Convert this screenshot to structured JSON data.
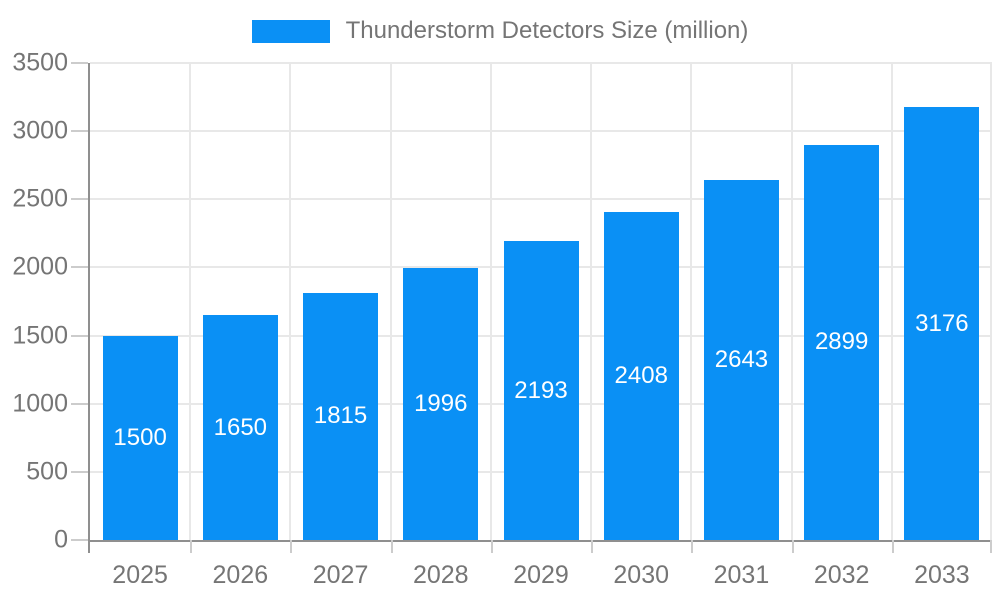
{
  "legend": {
    "label": "Thunderstorm Detectors Size (million)",
    "swatch_color": "#0a90f5"
  },
  "chart_data": {
    "type": "bar",
    "title": "Thunderstorm Detectors Size (million)",
    "categories": [
      "2025",
      "2026",
      "2027",
      "2028",
      "2029",
      "2030",
      "2031",
      "2032",
      "2033"
    ],
    "series": [
      {
        "name": "Thunderstorm Detectors Size (million)",
        "values": [
          1500,
          1650,
          1815,
          1996,
          2193,
          2408,
          2643,
          2899,
          3176
        ]
      }
    ],
    "xlabel": "",
    "ylabel": "",
    "ylim": [
      0,
      3500
    ],
    "yticks": [
      0,
      500,
      1000,
      1500,
      2000,
      2500,
      3000,
      3500
    ],
    "grid": true,
    "legend_position": "top",
    "value_labels": "inside-center",
    "colors": {
      "bar": "#0a90f5",
      "value_label": "#ffffff",
      "axis_text": "#757575",
      "axis_line": "#8f8f8f",
      "gridline": "#e8e8e8",
      "tick": "#cccccc",
      "background": "#ffffff"
    }
  }
}
